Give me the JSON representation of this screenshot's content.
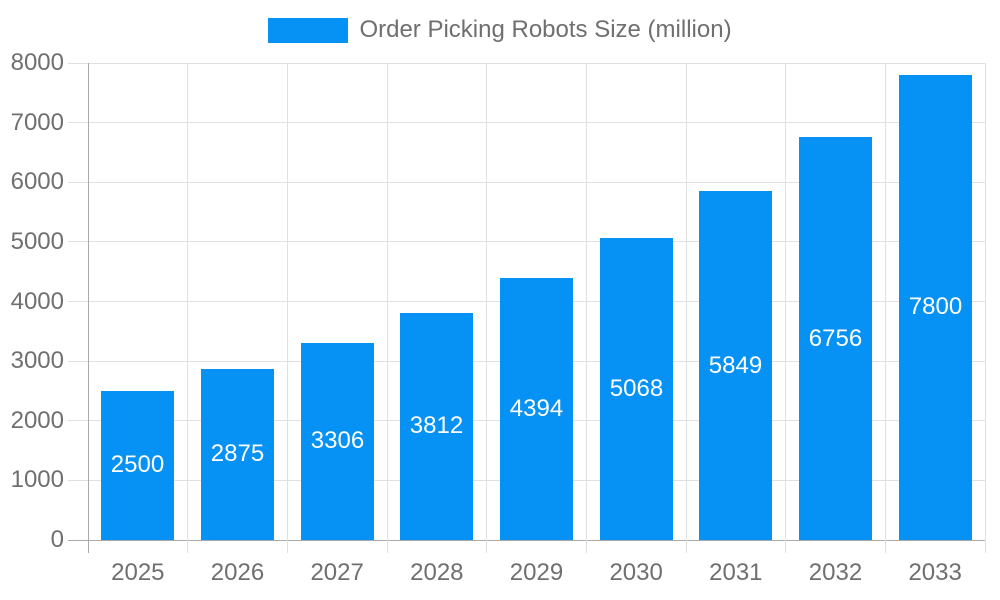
{
  "chart_data": {
    "type": "bar",
    "title": "Order Picking Robots Size (million)",
    "legend_label": "Order Picking Robots Size (million)",
    "legend_position": "top",
    "categories": [
      "2025",
      "2026",
      "2027",
      "2028",
      "2029",
      "2030",
      "2031",
      "2032",
      "2033"
    ],
    "values": [
      2500,
      2875,
      3306,
      3812,
      4394,
      5068,
      5849,
      6756,
      7800
    ],
    "value_labels": [
      "2500",
      "2875",
      "3306",
      "3812",
      "4394",
      "5068",
      "5849",
      "6756",
      "7800"
    ],
    "xlabel": "",
    "ylabel": "",
    "ylim": [
      0,
      8000
    ],
    "yticks": [
      0,
      1000,
      2000,
      3000,
      4000,
      5000,
      6000,
      7000,
      8000
    ],
    "grid": true,
    "colors": {
      "bar": "#0691f5",
      "grid_line": "#e0e0e0",
      "axis_line": "#a9a9a9",
      "axis_text": "#6f6f6f",
      "bar_value_text": "#ffffff",
      "background": "#ffffff"
    }
  }
}
